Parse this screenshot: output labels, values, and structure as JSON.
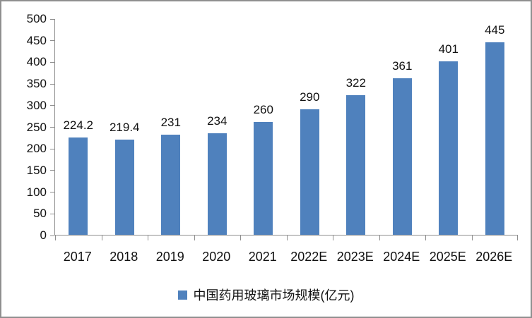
{
  "chart_data": {
    "type": "bar",
    "title": "",
    "categories": [
      "2017",
      "2018",
      "2019",
      "2020",
      "2021",
      "2022E",
      "2023E",
      "2024E",
      "2025E",
      "2026E"
    ],
    "values": [
      224.2,
      219.4,
      231,
      234,
      260,
      290,
      322,
      361,
      401,
      445
    ],
    "value_labels": [
      "224.2",
      "219.4",
      "231",
      "234",
      "260",
      "290",
      "322",
      "361",
      "401",
      "445"
    ],
    "series_name": "中国药用玻璃市场规模(亿元)",
    "xlabel": "",
    "ylabel": "",
    "ylim": [
      0,
      500
    ],
    "ytick_step": 50,
    "yticks": [
      0,
      50,
      100,
      150,
      200,
      250,
      300,
      350,
      400,
      450,
      500
    ],
    "grid": false,
    "legend_position": "bottom"
  },
  "legend": {
    "label": "中国药用玻璃市场规模(亿元)"
  },
  "colors": {
    "bar": "#4f81bd",
    "axis": "#8e8e8e",
    "frame_border": "#8f8f8f",
    "text": "#111111",
    "background": "#ffffff"
  }
}
